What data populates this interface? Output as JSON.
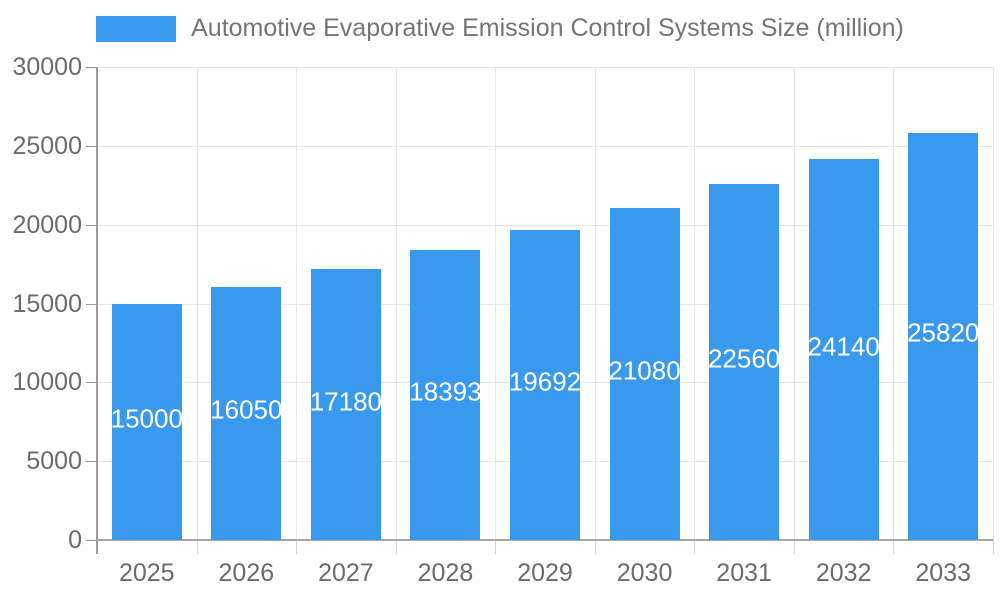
{
  "chart_data": {
    "type": "bar",
    "title": "Automotive Evaporative Emission Control Systems Size (million)",
    "categories": [
      "2025",
      "2026",
      "2027",
      "2028",
      "2029",
      "2030",
      "2031",
      "2032",
      "2033"
    ],
    "values": [
      15000,
      16050,
      17180,
      18393,
      19692,
      21080,
      22560,
      24140,
      25820
    ],
    "xlabel": "",
    "ylabel": "",
    "ylim": [
      0,
      30000
    ],
    "yticks": [
      0,
      5000,
      10000,
      15000,
      20000,
      25000,
      30000
    ],
    "grid": true,
    "legend_position": "top",
    "bar_color": "#3999EC",
    "bar_label_color": "#ffffff",
    "gridline_color": "#e6e6e6",
    "axis_color": "#9b9b9b",
    "tick_label_color": "#6b6b6b",
    "title_color": "#757575"
  }
}
